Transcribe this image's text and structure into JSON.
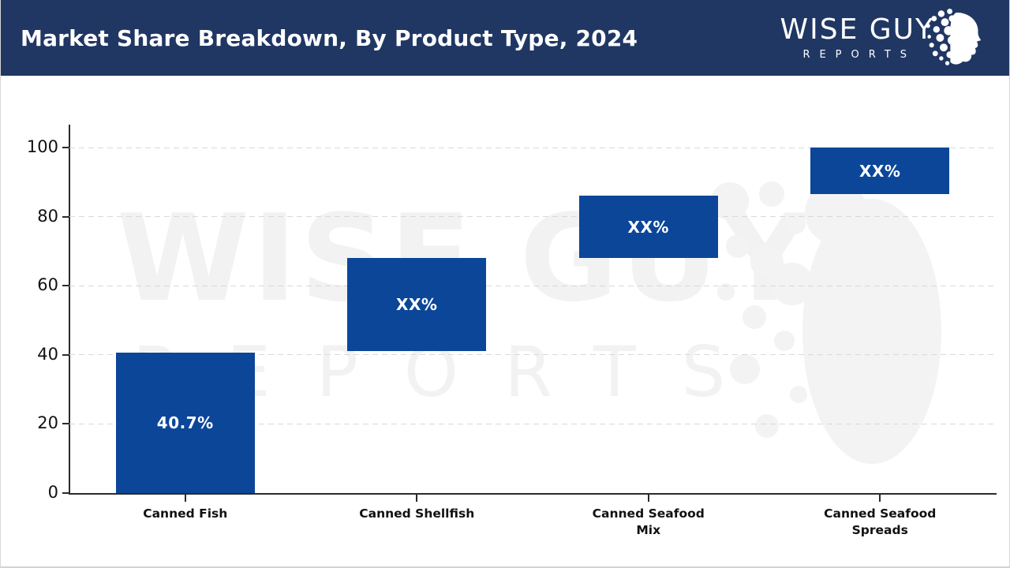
{
  "header": {
    "title": "Market Share Breakdown, By Product Type, 2024",
    "logo": {
      "line1": "WISE GUY",
      "line2": "REPORTS"
    }
  },
  "watermark": {
    "line1": "WISE GUY",
    "line2": "REPORTS"
  },
  "colors": {
    "header-bg": "#203764",
    "bar": "#0c4699",
    "bar-label": "#ffffff",
    "axis": "#2b2b2b",
    "grid": "#d9d9d9",
    "tick-text": "#111111",
    "watermark": "#f2f2f2"
  },
  "chart_data": {
    "type": "bar",
    "subtype": "waterfall",
    "title": "Market Share Breakdown, By Product Type, 2024",
    "categories": [
      "Canned Fish",
      "Canned Shellfish",
      "Canned Seafood Mix",
      "Canned Seafood Spreads"
    ],
    "segments": [
      {
        "category": "Canned Fish",
        "start": 0,
        "end": 40.7,
        "label": "40.7%"
      },
      {
        "category": "Canned Shellfish",
        "start": 41,
        "end": 68,
        "label": "XX%"
      },
      {
        "category": "Canned Seafood Mix",
        "start": 68,
        "end": 86,
        "label": "XX%"
      },
      {
        "category": "Canned Seafood Spreads",
        "start": 86.5,
        "end": 100,
        "label": "XX%"
      }
    ],
    "xlabel": "",
    "ylabel": "",
    "yticks": [
      0,
      20,
      40,
      60,
      80,
      100
    ],
    "ylim": [
      0,
      107
    ],
    "grid": "horizontal-dashed",
    "legend": "none",
    "bar_width_frac": 0.6
  }
}
